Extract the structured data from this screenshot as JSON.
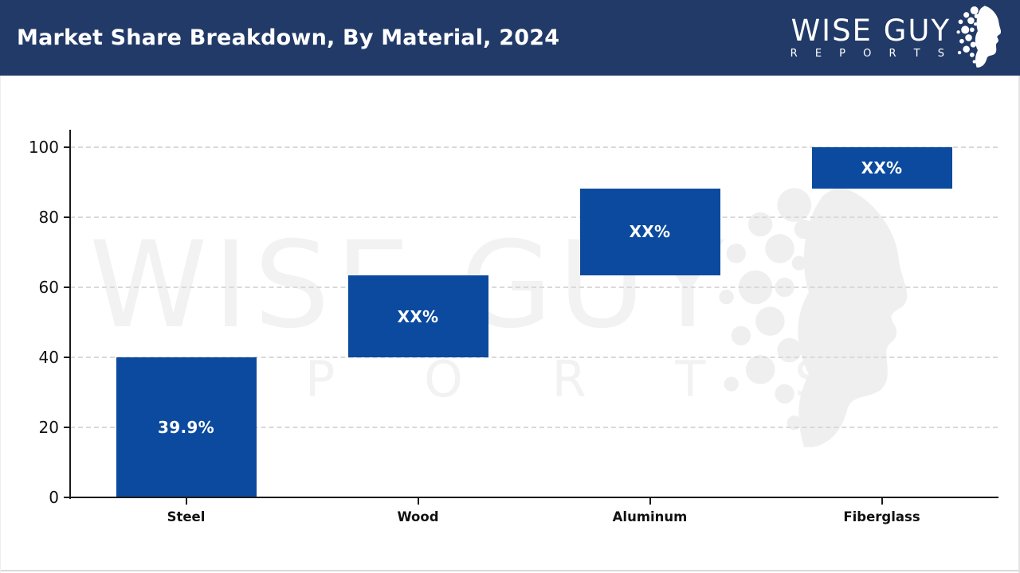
{
  "header": {
    "title": "Market Share Breakdown, By Material, 2024",
    "logo": {
      "line1": "WISE GUY",
      "line2": "R E P O R T S"
    }
  },
  "watermark": {
    "line1": "WISE GUY",
    "line2": "P O R T S"
  },
  "colors": {
    "header_bg": "#223a68",
    "bar_fill": "#0b4a9e",
    "grid": "#d9d9d9",
    "axis": "#1a1a1a",
    "bar_label_text": "#ffffff",
    "watermark": "#f2f2f2"
  },
  "chart_data": {
    "type": "bar",
    "subtype": "floating-waterfall",
    "title": "Market Share Breakdown, By Material, 2024",
    "categories": [
      "Steel",
      "Wood",
      "Aluminum",
      "Fiberglass"
    ],
    "segments": [
      {
        "category": "Steel",
        "start": 0,
        "end": 39.9,
        "label": "39.9%"
      },
      {
        "category": "Wood",
        "start": 39.9,
        "end": 63.4,
        "label": "XX%"
      },
      {
        "category": "Aluminum",
        "start": 63.4,
        "end": 88.2,
        "label": "XX%"
      },
      {
        "category": "Fiberglass",
        "start": 88.2,
        "end": 100,
        "label": "XX%"
      }
    ],
    "y_ticks": [
      0,
      20,
      40,
      60,
      80,
      100
    ],
    "ylim": [
      0,
      100
    ],
    "xlabel": "",
    "ylabel": "",
    "grid": "horizontal-dashed",
    "legend": "none"
  }
}
